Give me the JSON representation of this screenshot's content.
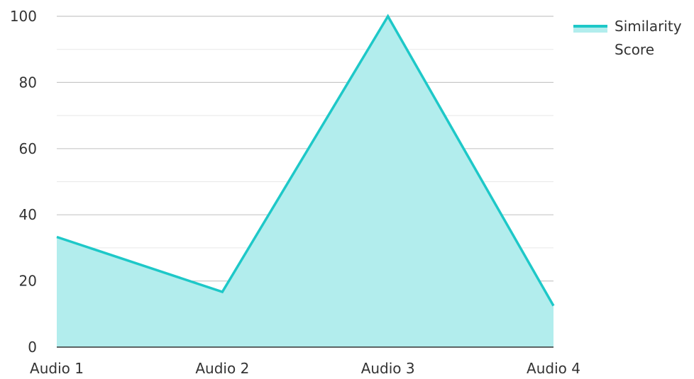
{
  "chart_data": {
    "type": "area",
    "categories": [
      "Audio 1",
      "Audio 2",
      "Audio 3",
      "Audio 4"
    ],
    "series": [
      {
        "name": "Similarity Score",
        "values": [
          33.3,
          16.7,
          100,
          12.5
        ],
        "color": "#1ec8c8",
        "fill_color": "#b2eded"
      }
    ],
    "ylim": [
      0,
      100
    ],
    "yticks": [
      0,
      20,
      40,
      60,
      80,
      100
    ],
    "grid": true,
    "legend": {
      "position": "top-right",
      "line1": "Similarity",
      "line2": "Score"
    },
    "xlabel": "",
    "ylabel": ""
  }
}
